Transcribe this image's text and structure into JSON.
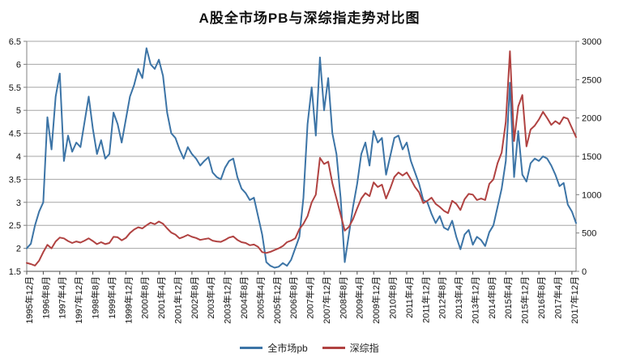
{
  "title": "A股全市场PB与深综指走势对比图",
  "colors": {
    "pb_line": "#3c74a6",
    "index_line": "#b04241",
    "gridline": "#a6a6a6",
    "axis": "#808080",
    "x_axis": "#4d4d4d",
    "background": "#ffffff",
    "text": "#111111"
  },
  "legend": {
    "items": [
      {
        "label": "全市场pb",
        "color": "#3c74a6"
      },
      {
        "label": "深综指",
        "color": "#b04241"
      }
    ],
    "position": "bottom"
  },
  "chart_data": {
    "type": "line",
    "title": "A股全市场PB与深综指走势对比图",
    "grid": true,
    "legend_position": "bottom",
    "x_label_every": 4,
    "x_tick_labels": [
      "1995年12月",
      "1996年8月",
      "1997年4月",
      "1997年12月",
      "1998年8月",
      "1999年4月",
      "1999年12月",
      "2000年8月",
      "2001年4月",
      "2001年12月",
      "2002年8月",
      "2003年4月",
      "2003年12月",
      "2004年8月",
      "2005年4月",
      "2005年12月",
      "2006年8月",
      "2007年4月",
      "2007年12月",
      "2008年8月",
      "2009年4月",
      "2009年12月",
      "2010年8月",
      "2011年4月",
      "2011年12月",
      "2012年8月",
      "2013年4月",
      "2013年12月",
      "2014年8月",
      "2015年4月",
      "2015年12月",
      "2016年8月",
      "2017年4月",
      "2017年12月"
    ],
    "left_axis": {
      "min": 1.5,
      "max": 6.5,
      "step": 0.5,
      "ticks": [
        "6.5",
        "6",
        "5.5",
        "5",
        "4.5",
        "4",
        "3.5",
        "3",
        "2.5",
        "2",
        "1.5"
      ]
    },
    "right_axis": {
      "min": 0,
      "max": 3000,
      "step": 500,
      "ticks": [
        "3000",
        "2500",
        "2000",
        "1500",
        "1000",
        "500",
        "0"
      ]
    },
    "x": [
      "1995-12",
      "1996-02",
      "1996-04",
      "1996-06",
      "1996-08",
      "1996-10",
      "1996-12",
      "1997-02",
      "1997-04",
      "1997-06",
      "1997-08",
      "1997-10",
      "1997-12",
      "1998-02",
      "1998-04",
      "1998-06",
      "1998-08",
      "1998-10",
      "1998-12",
      "1999-02",
      "1999-04",
      "1999-06",
      "1999-08",
      "1999-10",
      "1999-12",
      "2000-02",
      "2000-04",
      "2000-06",
      "2000-08",
      "2000-10",
      "2000-12",
      "2001-02",
      "2001-04",
      "2001-06",
      "2001-08",
      "2001-10",
      "2001-12",
      "2002-02",
      "2002-04",
      "2002-06",
      "2002-08",
      "2002-10",
      "2002-12",
      "2003-02",
      "2003-04",
      "2003-06",
      "2003-08",
      "2003-10",
      "2003-12",
      "2004-02",
      "2004-04",
      "2004-06",
      "2004-08",
      "2004-10",
      "2004-12",
      "2005-02",
      "2005-04",
      "2005-06",
      "2005-08",
      "2005-10",
      "2005-12",
      "2006-02",
      "2006-04",
      "2006-06",
      "2006-08",
      "2006-10",
      "2006-12",
      "2007-02",
      "2007-04",
      "2007-06",
      "2007-08",
      "2007-10",
      "2007-12",
      "2008-02",
      "2008-04",
      "2008-06",
      "2008-08",
      "2008-10",
      "2008-12",
      "2009-02",
      "2009-04",
      "2009-06",
      "2009-08",
      "2009-10",
      "2009-12",
      "2010-02",
      "2010-04",
      "2010-06",
      "2010-08",
      "2010-10",
      "2010-12",
      "2011-02",
      "2011-04",
      "2011-06",
      "2011-08",
      "2011-10",
      "2011-12",
      "2012-02",
      "2012-04",
      "2012-06",
      "2012-08",
      "2012-10",
      "2012-12",
      "2013-02",
      "2013-04",
      "2013-06",
      "2013-08",
      "2013-10",
      "2013-12",
      "2014-02",
      "2014-04",
      "2014-06",
      "2014-08",
      "2014-10",
      "2014-12",
      "2015-02",
      "2015-04",
      "2015-06",
      "2015-08",
      "2015-10",
      "2015-12",
      "2016-02",
      "2016-04",
      "2016-06",
      "2016-08",
      "2016-10",
      "2016-12",
      "2017-02",
      "2017-04",
      "2017-06",
      "2017-08",
      "2017-10",
      "2017-12",
      "2018-02"
    ],
    "series": [
      {
        "name": "全市场pb",
        "axis": "left",
        "color": "#3c74a6",
        "values": [
          2.0,
          2.1,
          2.5,
          2.8,
          3.0,
          4.85,
          4.15,
          5.3,
          5.8,
          3.9,
          4.45,
          4.1,
          4.3,
          4.2,
          4.75,
          5.3,
          4.6,
          4.05,
          4.35,
          3.95,
          4.05,
          4.95,
          4.7,
          4.3,
          4.8,
          5.3,
          5.55,
          5.9,
          5.7,
          6.35,
          6.0,
          5.9,
          6.1,
          5.75,
          4.95,
          4.5,
          4.4,
          4.15,
          3.95,
          4.2,
          4.05,
          3.95,
          3.8,
          3.9,
          3.98,
          3.65,
          3.55,
          3.5,
          3.75,
          3.9,
          3.95,
          3.55,
          3.3,
          3.2,
          3.05,
          3.1,
          2.7,
          2.3,
          1.7,
          1.62,
          1.58,
          1.6,
          1.68,
          1.62,
          1.75,
          2.0,
          2.25,
          3.1,
          4.7,
          5.5,
          4.45,
          6.15,
          5.0,
          5.7,
          4.5,
          4.05,
          3.1,
          1.7,
          2.3,
          2.9,
          3.4,
          4.05,
          4.3,
          3.8,
          4.55,
          4.3,
          4.4,
          3.6,
          4.0,
          4.4,
          4.45,
          4.15,
          4.3,
          3.9,
          3.65,
          3.4,
          3.05,
          3.0,
          2.75,
          2.55,
          2.7,
          2.45,
          2.4,
          2.6,
          2.25,
          1.98,
          2.3,
          2.4,
          2.08,
          2.25,
          2.18,
          2.05,
          2.35,
          2.5,
          2.9,
          3.3,
          3.9,
          5.6,
          3.55,
          4.55,
          3.6,
          3.45,
          3.85,
          3.95,
          3.9,
          4.0,
          3.95,
          3.8,
          3.6,
          3.35,
          3.42,
          2.95,
          2.8,
          2.55
        ]
      },
      {
        "name": "深综指",
        "axis": "right",
        "color": "#b04241",
        "values": [
          110,
          95,
          75,
          140,
          250,
          345,
          300,
          390,
          440,
          430,
          395,
          370,
          390,
          375,
          400,
          430,
          395,
          355,
          380,
          355,
          370,
          450,
          445,
          405,
          435,
          500,
          545,
          575,
          560,
          600,
          635,
          615,
          650,
          620,
          560,
          505,
          480,
          430,
          450,
          475,
          450,
          435,
          410,
          420,
          430,
          400,
          390,
          385,
          410,
          440,
          455,
          410,
          380,
          370,
          340,
          350,
          320,
          250,
          240,
          255,
          278,
          300,
          330,
          380,
          400,
          430,
          550,
          620,
          720,
          900,
          1000,
          1480,
          1400,
          1430,
          1150,
          950,
          740,
          530,
          580,
          680,
          820,
          950,
          1020,
          980,
          1160,
          1100,
          1130,
          950,
          1080,
          1230,
          1290,
          1250,
          1290,
          1200,
          1100,
          1030,
          890,
          920,
          960,
          880,
          840,
          790,
          760,
          920,
          880,
          800,
          940,
          1010,
          1000,
          930,
          950,
          930,
          1140,
          1200,
          1410,
          1550,
          1950,
          2870,
          1700,
          2150,
          2300,
          1630,
          1850,
          1900,
          1980,
          2080,
          2000,
          1910,
          1960,
          1920,
          2010,
          1990,
          1870,
          1750
        ]
      }
    ]
  }
}
